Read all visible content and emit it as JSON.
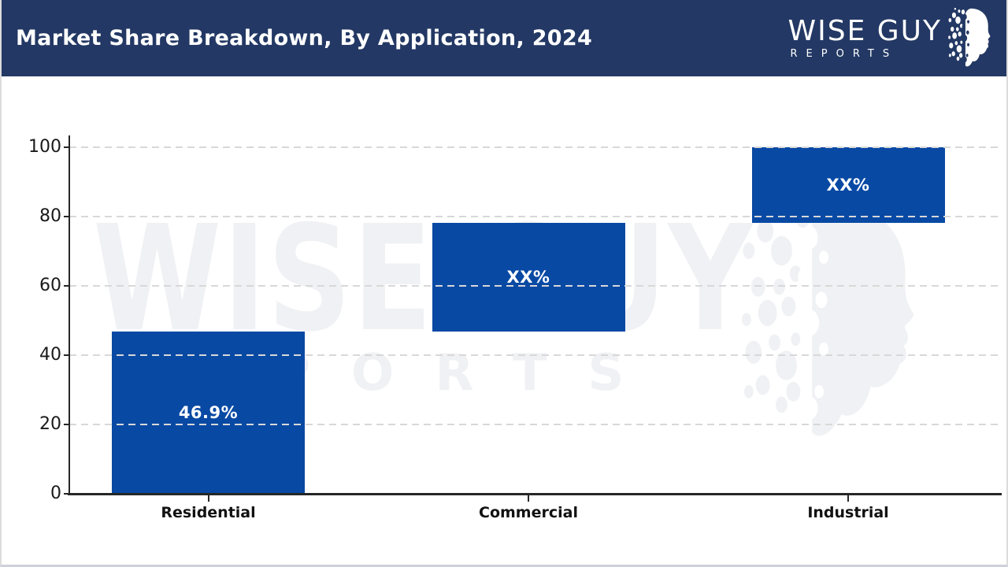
{
  "header": {
    "title": "Market Share Breakdown, By Application, 2024",
    "logo": {
      "brand_line1": "WISE GUY",
      "brand_line2": "REPORTS"
    }
  },
  "watermark": {
    "line1": "WISE GUY",
    "line2": "REPORTS"
  },
  "chart_data": {
    "type": "bar",
    "subtype": "stacked-waterfall-percentage",
    "title": "Market Share Breakdown, By Application, 2024",
    "categories": [
      "Residential",
      "Commercial",
      "Industrial"
    ],
    "segments": [
      {
        "category": "Residential",
        "start": 0,
        "end": 46.9,
        "value": 46.9,
        "label": "46.9%"
      },
      {
        "category": "Commercial",
        "start": 46.9,
        "end": 78.2,
        "value": 31.3,
        "label": "XX%"
      },
      {
        "category": "Industrial",
        "start": 78.2,
        "end": 100,
        "value": 21.8,
        "label": "XX%"
      }
    ],
    "xlabel": "",
    "ylabel": "",
    "ylim": [
      0,
      100
    ],
    "yticks": [
      0,
      20,
      40,
      60,
      80,
      100
    ],
    "grid": "horizontal-dashed",
    "legend": "none",
    "bar_color": "#0849A4",
    "bar_label_color": "#FFFFFF"
  },
  "colors": {
    "header_bg": "#233864",
    "bar": "#0849A4",
    "axis": "#262626",
    "grid": "#D8D8D8",
    "watermark": "#F0F1F4"
  }
}
